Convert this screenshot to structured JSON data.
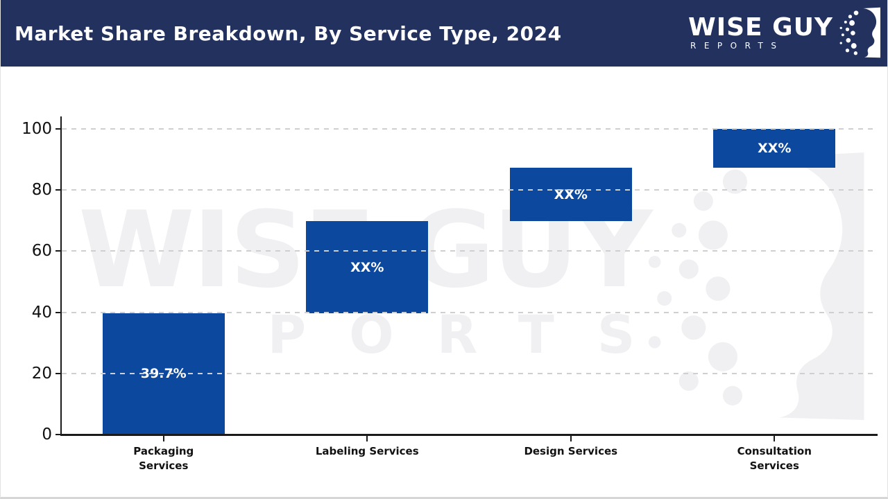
{
  "header": {
    "title": "Market Share Breakdown, By Service Type, 2024",
    "logo_line1": "WISE GUY",
    "logo_line2": "REPORTS"
  },
  "watermark": {
    "line1": "WISE GUY",
    "line2": "REPORTS"
  },
  "colors": {
    "header_bg": "#23315F",
    "bar": "#0C499E",
    "bar_label": "#FFFFFF",
    "grid": "#CFCFCF",
    "axis": "#1A1A1A",
    "watermark": "#F0F0F3"
  },
  "chart_data": {
    "type": "bar",
    "subtype": "waterfall-stacked-cumulative",
    "title": "Market Share Breakdown, By Service Type, 2024",
    "xlabel": "",
    "ylabel": "",
    "ylim": [
      0,
      100
    ],
    "yticks": [
      0,
      20,
      40,
      60,
      80,
      100
    ],
    "grid": "horizontal-dashed",
    "legend": false,
    "categories": [
      "Packaging Services",
      "Labeling Services",
      "Design Services",
      "Consultation Services"
    ],
    "bars": [
      {
        "category": "Packaging Services",
        "start": 0,
        "end": 39.7,
        "label": "39.7%"
      },
      {
        "category": "Labeling Services",
        "start": 39.7,
        "end": 69.8,
        "label": "XX%"
      },
      {
        "category": "Design Services",
        "start": 69.8,
        "end": 87.3,
        "label": "XX%"
      },
      {
        "category": "Consultation Services",
        "start": 87.3,
        "end": 100,
        "label": "XX%"
      }
    ]
  }
}
